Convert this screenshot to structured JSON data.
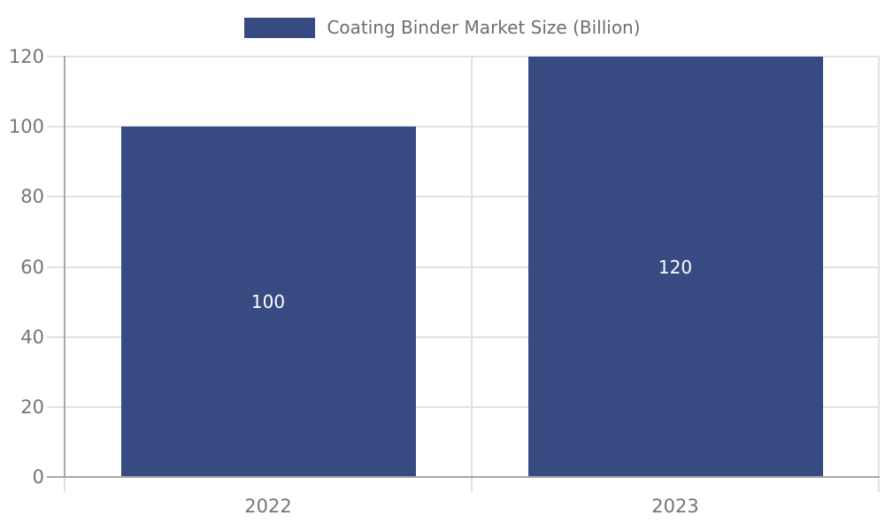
{
  "chart_data": {
    "type": "bar",
    "title": "Coating Binder Market Size (Billion)",
    "categories": [
      "2022",
      "2023"
    ],
    "series": [
      {
        "name": "Coating Binder Market Size (Billion)",
        "values": [
          100,
          120
        ]
      }
    ],
    "bar_value_labels": [
      "100",
      "120"
    ],
    "xlabel": "",
    "ylabel": "",
    "ylim": [
      0,
      120
    ],
    "yticks": [
      0,
      20,
      40,
      60,
      80,
      100,
      120
    ],
    "grid": true,
    "legend_position": "top-center",
    "colors": {
      "bar": "#374b82",
      "grid": "#e2e2e2",
      "axis": "#a8a8a8",
      "tick_label": "#757575",
      "legend_text": "#6e6e6e",
      "bar_label": "#ffffff",
      "background": "#ffffff"
    }
  }
}
